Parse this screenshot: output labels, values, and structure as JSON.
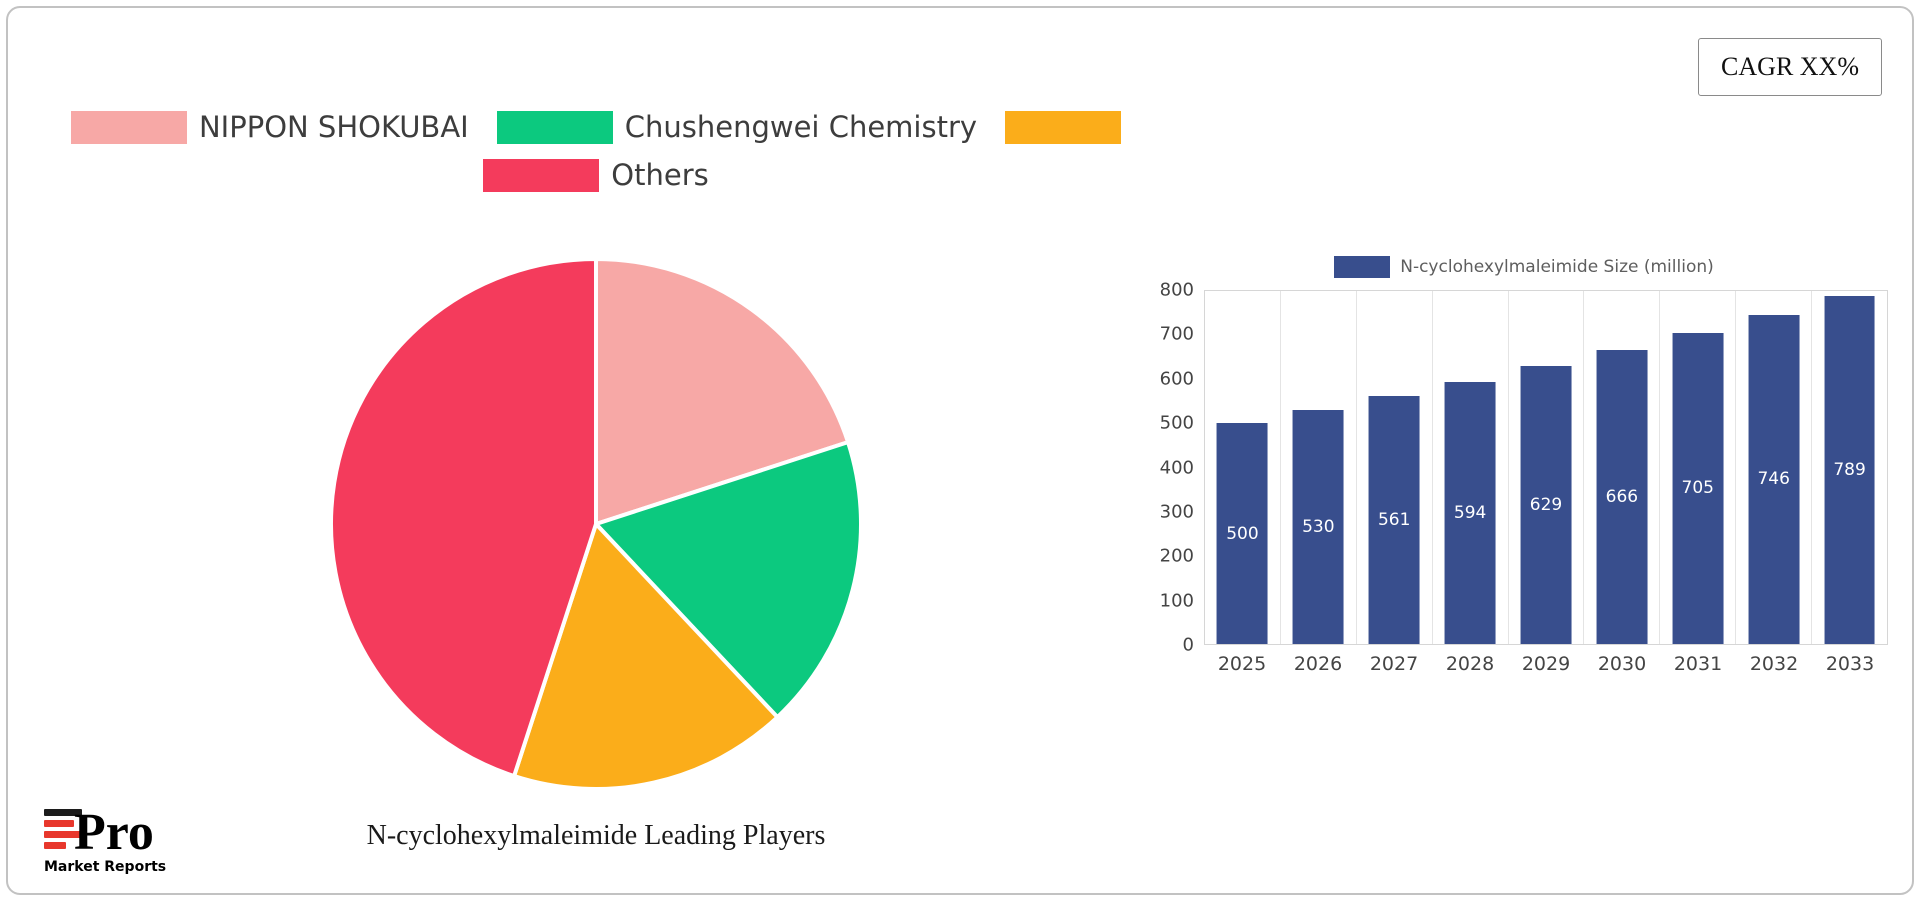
{
  "header": {
    "cagr_label": "CAGR XX%"
  },
  "logo": {
    "name": "Pro",
    "subtitle": "Market Reports"
  },
  "chart_data": [
    {
      "type": "pie",
      "title": "N-cyclohexylmaleimide Leading Players",
      "legend_position": "top",
      "slices": [
        {
          "label": "NIPPON SHOKUBAI",
          "value": 20,
          "color": "#f7a8a6"
        },
        {
          "label": "Chushengwei Chemistry",
          "value": 18,
          "color": "#0cc97f"
        },
        {
          "label": "",
          "value": 17,
          "color": "#fbad1a"
        },
        {
          "label": "Others",
          "value": 45,
          "color": "#f43b5c"
        }
      ]
    },
    {
      "type": "bar",
      "legend": "N-cyclohexylmaleimide Size (million)",
      "categories": [
        "2025",
        "2026",
        "2027",
        "2028",
        "2029",
        "2030",
        "2031",
        "2032",
        "2033"
      ],
      "values": [
        500,
        530,
        561,
        594,
        629,
        666,
        705,
        746,
        789
      ],
      "bar_color": "#384e8d",
      "ylim": [
        0,
        800
      ],
      "yticks": [
        0,
        100,
        200,
        300,
        400,
        500,
        600,
        700,
        800
      ],
      "grid": true,
      "legend_position": "top"
    }
  ]
}
